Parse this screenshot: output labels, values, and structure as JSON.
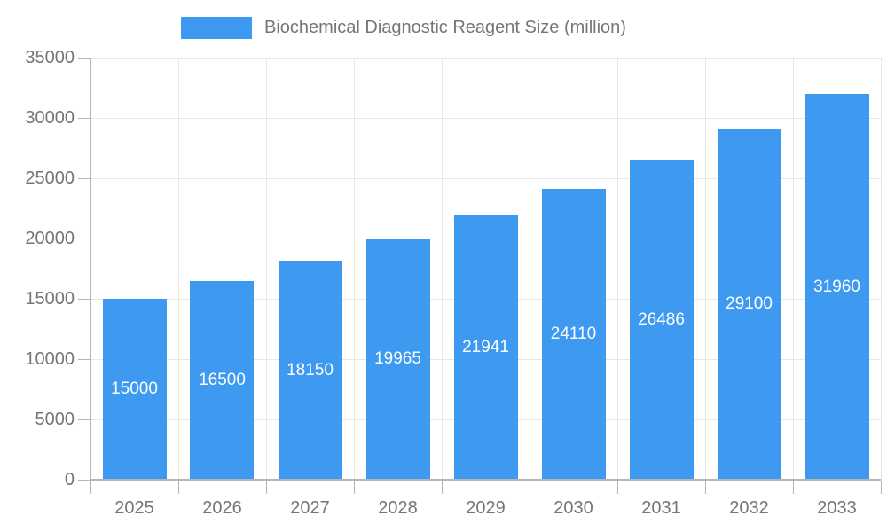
{
  "legend": {
    "label": "Biochemical Diagnostic Reagent Size (million)"
  },
  "colors": {
    "bar": "#3d9af0",
    "grid": "#e7e7e7",
    "axis": "#b5b5b5",
    "label_text": "#757575",
    "bar_label_text": "#ffffff",
    "background": "#ffffff"
  },
  "chart_data": {
    "type": "bar",
    "title": "Biochemical Diagnostic Reagent Size (million)",
    "categories": [
      "2025",
      "2026",
      "2027",
      "2028",
      "2029",
      "2030",
      "2031",
      "2032",
      "2033"
    ],
    "values": [
      15000,
      16500,
      18150,
      19965,
      21941,
      24110,
      26486,
      29100,
      31960
    ],
    "xlabel": "",
    "ylabel": "",
    "ylim": [
      0,
      35000
    ],
    "ytick_step": 5000,
    "ytick_labels": [
      "0",
      "5000",
      "10000",
      "15000",
      "20000",
      "25000",
      "30000",
      "35000"
    ],
    "grid": true,
    "legend_position": "top",
    "bar_value_labels": "inside-center"
  }
}
